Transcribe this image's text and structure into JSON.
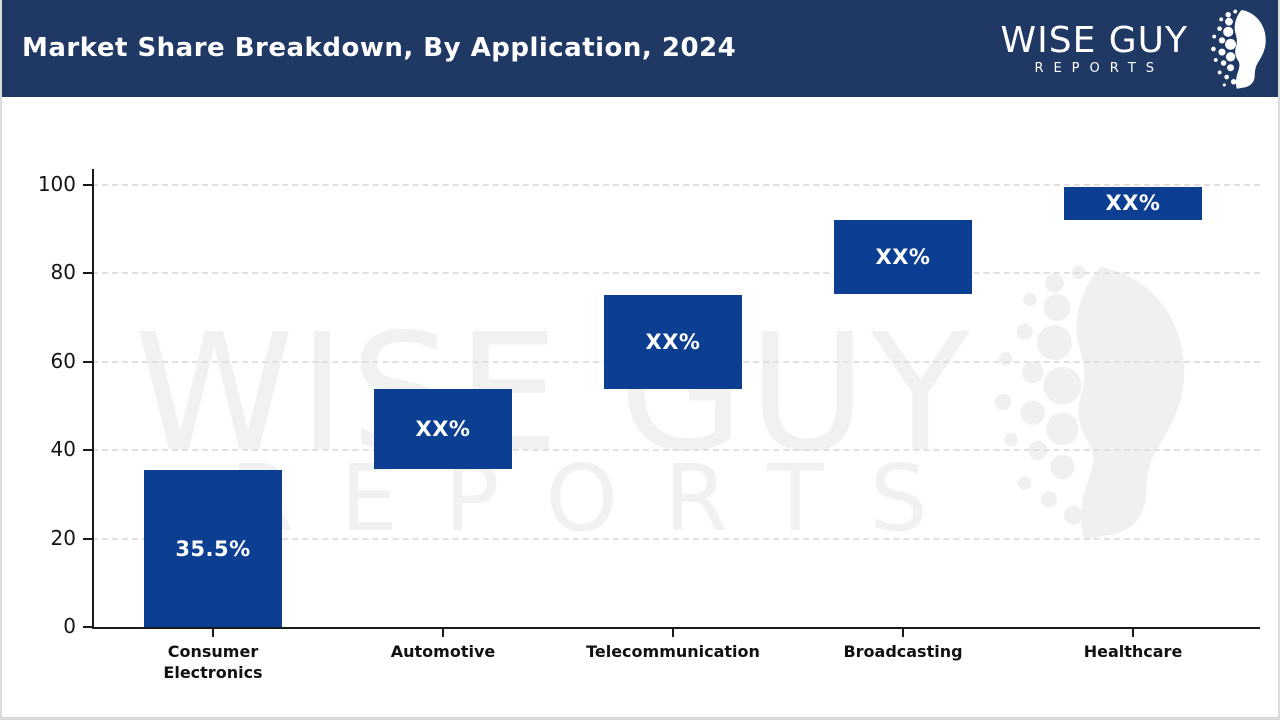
{
  "page": {
    "background": "#ffffff",
    "border_color": "#d9d9d9"
  },
  "header": {
    "title": "Market Share Breakdown, By Application, 2024",
    "bg_color": "#1f3864",
    "text_color": "#ffffff",
    "logo": {
      "line1": "WISE GUY",
      "line2": "REPORTS"
    }
  },
  "watermark": {
    "line1": "WISE GUY",
    "line2": "REPORTS"
  },
  "chart_data": {
    "type": "bar",
    "subtype": "waterfall",
    "title": "Market Share Breakdown, By Application, 2024",
    "categories": [
      "Consumer Electronics",
      "Automotive",
      "Telecommunication",
      "Broadcasting",
      "Healthcare"
    ],
    "segments": [
      {
        "category": "Consumer Electronics",
        "display": "Consumer\nElectronics",
        "start": 0,
        "end": 35.5,
        "label": "35.5%"
      },
      {
        "category": "Automotive",
        "display": "Automotive",
        "start": 35.7,
        "end": 53.9,
        "label": "XX%"
      },
      {
        "category": "Telecommunication",
        "display": "Telecommunication",
        "start": 53.9,
        "end": 75.1,
        "label": "XX%"
      },
      {
        "category": "Broadcasting",
        "display": "Broadcasting",
        "start": 75.4,
        "end": 92.1,
        "label": "XX%"
      },
      {
        "category": "Healthcare",
        "display": "Healthcare",
        "start": 92.1,
        "end": 99.6,
        "label": "XX%"
      }
    ],
    "ylim": [
      0,
      100
    ],
    "yticks": [
      0,
      20,
      40,
      60,
      80,
      100
    ],
    "xlabel": "",
    "ylabel": "",
    "grid": "horizontal-dashed",
    "legend": "none",
    "bar_color": "#0c3e92",
    "bar_label_color": "#ffffff",
    "axis_color": "#1a1a1a",
    "gridline_color": "#e0e0e0"
  }
}
